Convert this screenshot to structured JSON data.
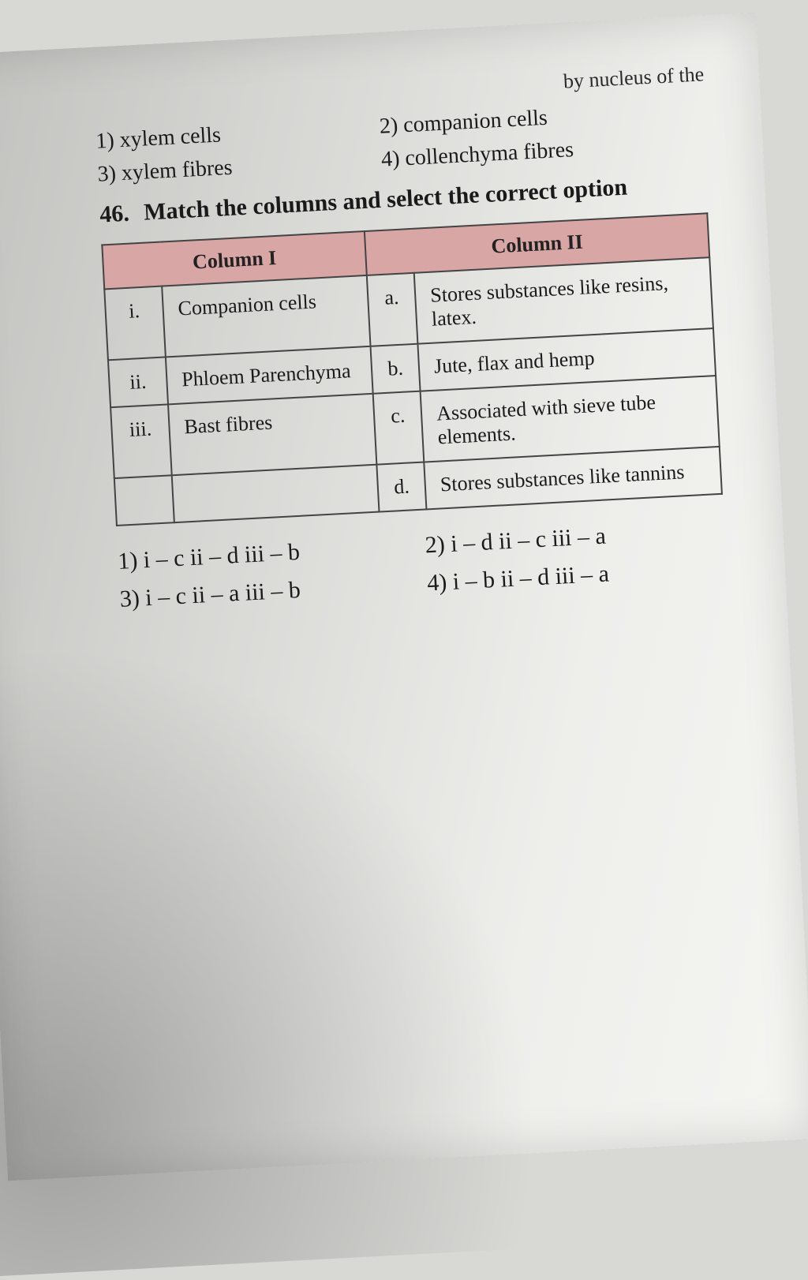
{
  "top_fragment": "by nucleus of the",
  "q45_options": {
    "opt1": "1) xylem cells",
    "opt2": "2) companion cells",
    "opt3": "3) xylem fibres",
    "opt4": "4) collenchyma fibres"
  },
  "q46": {
    "number": "46.",
    "text": "Match the columns and select the correct option"
  },
  "table": {
    "headers": {
      "col1": "Column I",
      "col2": "Column II"
    },
    "rows": [
      {
        "num": "i.",
        "left": "Companion cells",
        "lbl": "a.",
        "right": "Stores substances like resins, latex."
      },
      {
        "num": "ii.",
        "left": "Phloem Parenchyma",
        "lbl": "b.",
        "right": "Jute, flax and hemp"
      },
      {
        "num": "iii.",
        "left": "Bast fibres",
        "lbl": "c.",
        "right": "Associated with sieve tube elements."
      },
      {
        "num": "",
        "left": "",
        "lbl": "d.",
        "right": "Stores substances like tannins"
      }
    ]
  },
  "answers": {
    "a1": "1) i – c ii – d iii – b",
    "a2": "2) i – d ii – c iii – a",
    "a3": "3) i – c ii – a iii – b",
    "a4": "4) i – b ii – d iii – a"
  },
  "colors": {
    "header_bg": "#d9a6a6",
    "page_bg_start": "#c0c0bd",
    "page_bg_end": "#f5f5f2",
    "border": "#444444",
    "text": "#1a1a1a"
  },
  "typography": {
    "body_fontsize": 28,
    "question_fontsize": 30,
    "table_fontsize": 26,
    "answer_fontsize": 30
  }
}
